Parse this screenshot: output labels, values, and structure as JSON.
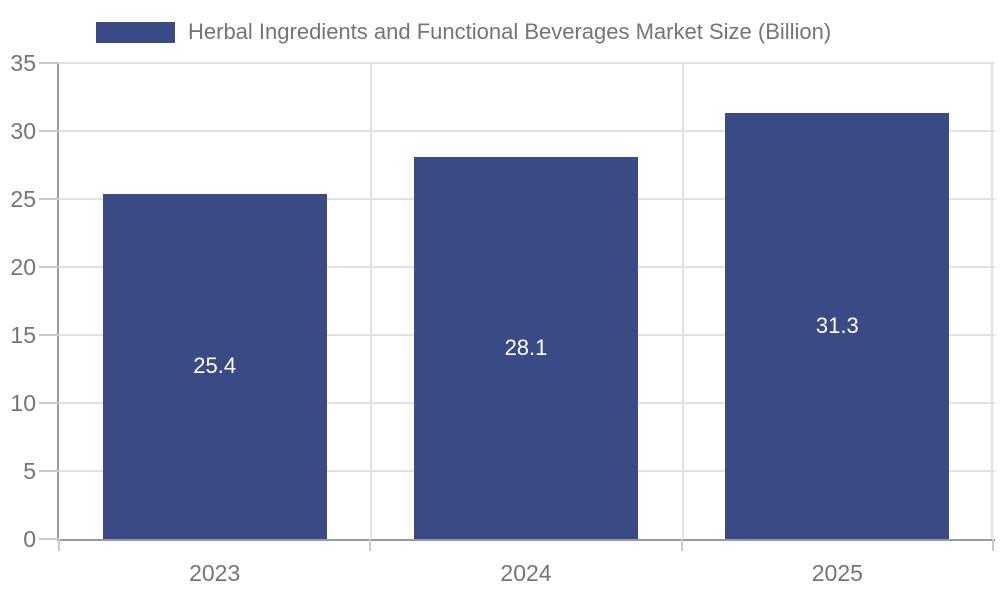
{
  "chart_data": {
    "type": "bar",
    "title": "Herbal Ingredients and Functional Beverages Market Size (Billion)",
    "categories": [
      "2023",
      "2024",
      "2025"
    ],
    "values": [
      25.4,
      28.1,
      31.3
    ],
    "value_labels": [
      "25.4",
      "28.1",
      "31.3"
    ],
    "value_label_position": "inside-center",
    "xlabel": "",
    "ylabel": "",
    "ylim": [
      0,
      35
    ],
    "ytick_step": 5,
    "ytick_labels": [
      "0",
      "5",
      "10",
      "15",
      "20",
      "25",
      "30",
      "35"
    ],
    "grid": true,
    "legend_position": "top-left",
    "bar_width_fraction": 0.72,
    "colors": {
      "bar": "#394A84",
      "value_label_text": "#FFFFFF",
      "legend_text": "#757575",
      "axis_label_text": "#757575",
      "axis_line": "#999999",
      "gridline": "#E2E2E2",
      "tick_mark": "#C9C9C9",
      "background": "#FFFFFF"
    }
  }
}
